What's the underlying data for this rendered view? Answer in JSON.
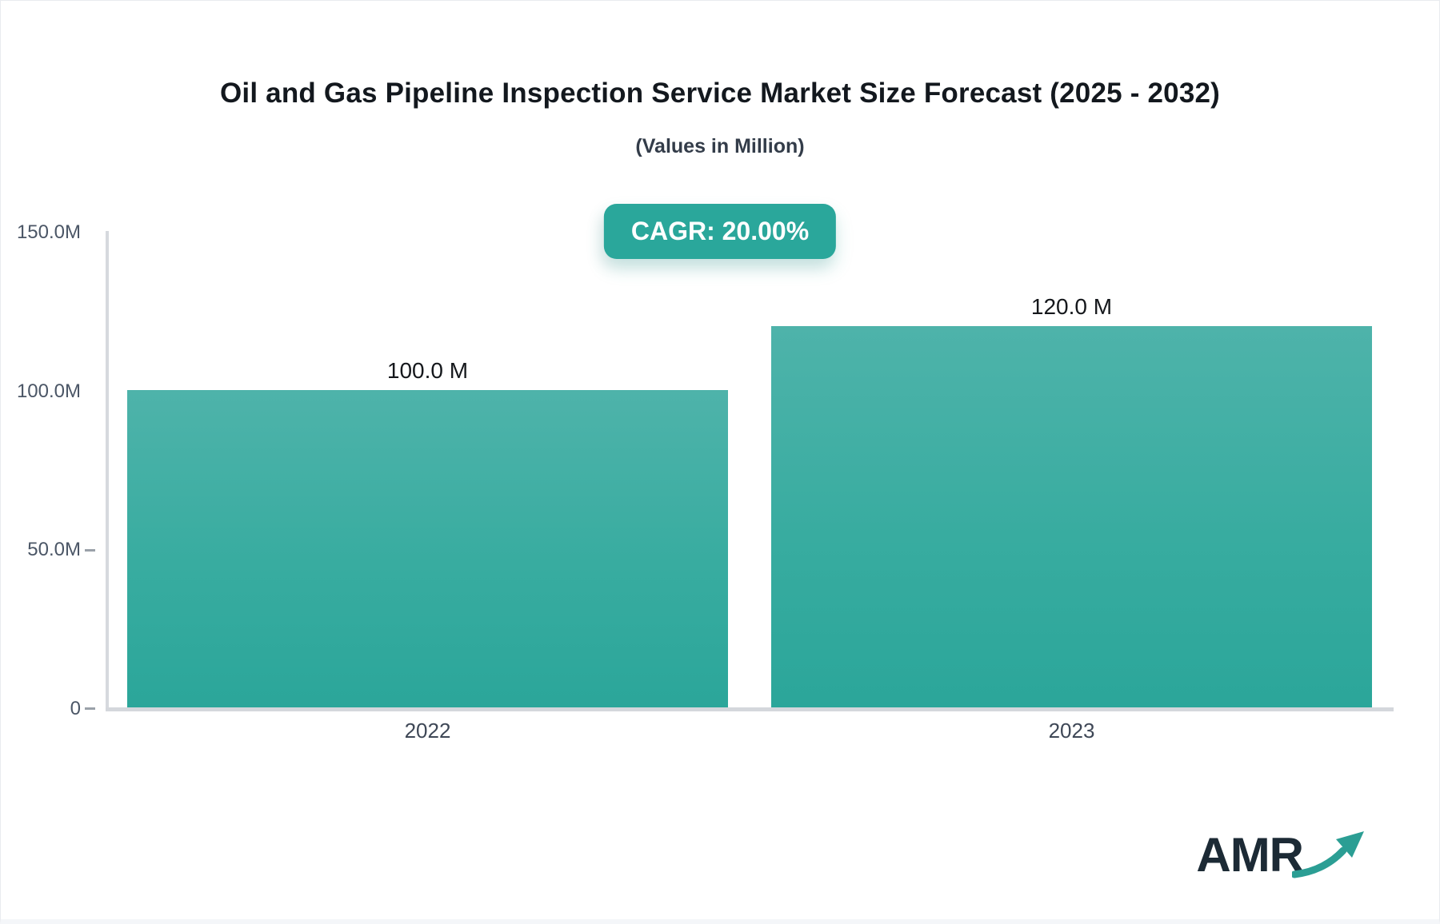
{
  "page": {
    "title": "Oil and Gas Pipeline Inspection Service Market Size Forecast (2025 - 2032)",
    "subtitle": "(Values in Million)",
    "cagr_badge": "CAGR: 20.00%"
  },
  "chart_data": {
    "type": "bar",
    "categories": [
      "2022",
      "2023"
    ],
    "values": [
      100.0,
      120.0
    ],
    "value_labels": [
      "100.0 M",
      "120.0 M"
    ],
    "unit": "Million",
    "title": "Oil and Gas Pipeline Inspection Service Market Size Forecast (2025 - 2032)",
    "subtitle": "(Values in Million)",
    "cagr_percent": "20.00%",
    "ylim": [
      0,
      150
    ],
    "yticks": [
      "150.0M",
      "100.0M",
      "50.0M",
      "0"
    ],
    "xlabel": "",
    "ylabel": "",
    "grid": false,
    "legend": false,
    "bar_color_top": "#4eb3aa",
    "bar_color_bottom": "#2ba69a"
  },
  "colors": {
    "accent_teal": "#2aa79b",
    "axis_line": "#d6d9de",
    "tick_mark": "#9aa1a9",
    "axis_label_text": "#4b5666",
    "title_text": "#13181e",
    "logo_text": "#1c2a35",
    "logo_arrow": "#2b9e94"
  },
  "logo": {
    "text": "AMR"
  }
}
